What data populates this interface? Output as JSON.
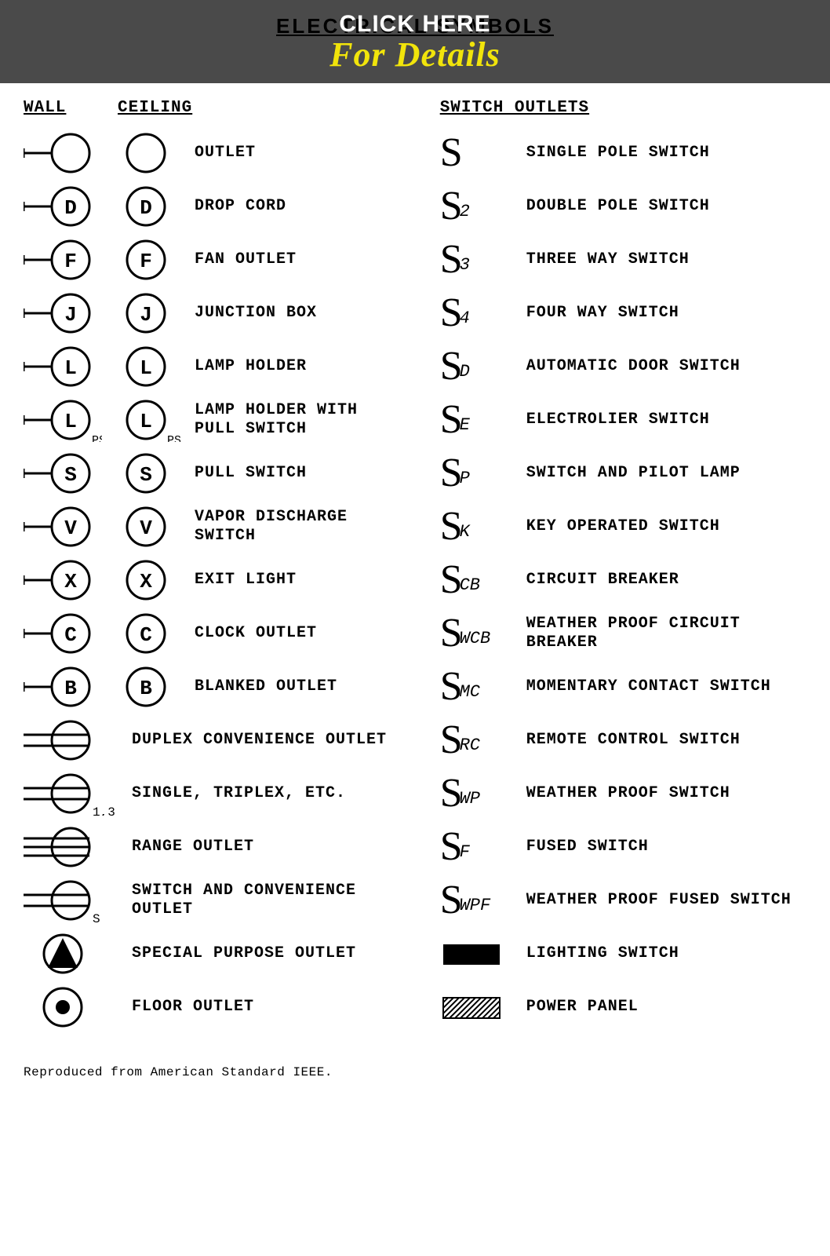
{
  "banner": {
    "hidden_text": "ELECTRICAL SYMBOLS",
    "click_here": "CLICK HERE",
    "for_details": "For Details",
    "bg_color": "#4a4a4a",
    "click_color": "#ffffff",
    "details_color": "#f1e40b"
  },
  "headers": {
    "wall": "WALL",
    "ceiling": "CEILING",
    "switch_outlets": "SWITCH OUTLETS"
  },
  "styling": {
    "stroke_color": "#000000",
    "stroke_width": 3,
    "circle_radius": 24,
    "font_family_mono": "Courier New",
    "font_family_serif": "Times New Roman",
    "label_fontsize": 20,
    "header_fontsize": 21,
    "s_fontsize": 52,
    "sub_fontsize": 22,
    "background": "#ffffff"
  },
  "outlet_rows": [
    {
      "letter": "",
      "sub": "",
      "label": "OUTLET"
    },
    {
      "letter": "D",
      "sub": "",
      "label": "DROP CORD"
    },
    {
      "letter": "F",
      "sub": "",
      "label": "FAN OUTLET"
    },
    {
      "letter": "J",
      "sub": "",
      "label": "JUNCTION BOX"
    },
    {
      "letter": "L",
      "sub": "",
      "label": "LAMP HOLDER"
    },
    {
      "letter": "L",
      "sub": "PS",
      "label": "LAMP HOLDER WITH PULL SWITCH"
    },
    {
      "letter": "S",
      "sub": "",
      "label": "PULL SWITCH"
    },
    {
      "letter": "V",
      "sub": "",
      "label": "VAPOR DISCHARGE SWITCH"
    },
    {
      "letter": "X",
      "sub": "",
      "label": "EXIT LIGHT"
    },
    {
      "letter": "C",
      "sub": "",
      "label": "CLOCK OUTLET"
    },
    {
      "letter": "B",
      "sub": "",
      "label": "BLANKED OUTLET"
    }
  ],
  "lower_rows": [
    {
      "type": "duplex",
      "sub": "",
      "label": "DUPLEX CONVENIENCE OUTLET"
    },
    {
      "type": "duplex",
      "sub": "1,3",
      "label": "SINGLE, TRIPLEX, ETC."
    },
    {
      "type": "range",
      "sub": "",
      "label": "RANGE OUTLET"
    },
    {
      "type": "duplex",
      "sub": "S",
      "label": "SWITCH AND CONVENIENCE OUTLET"
    },
    {
      "type": "special",
      "sub": "",
      "label": "SPECIAL PURPOSE OUTLET"
    },
    {
      "type": "floor",
      "sub": "",
      "label": "FLOOR OUTLET"
    }
  ],
  "switch_rows": [
    {
      "sub": "",
      "label": "SINGLE POLE SWITCH"
    },
    {
      "sub": "2",
      "label": "DOUBLE POLE SWITCH"
    },
    {
      "sub": "3",
      "label": "THREE WAY SWITCH"
    },
    {
      "sub": "4",
      "label": "FOUR WAY SWITCH"
    },
    {
      "sub": "D",
      "label": "AUTOMATIC DOOR SWITCH"
    },
    {
      "sub": "E",
      "label": "ELECTROLIER SWITCH"
    },
    {
      "sub": "P",
      "label": "SWITCH AND PILOT LAMP"
    },
    {
      "sub": "K",
      "label": "KEY OPERATED SWITCH"
    },
    {
      "sub": "CB",
      "label": "CIRCUIT BREAKER"
    },
    {
      "sub": "WCB",
      "label": "WEATHER PROOF CIRCUIT BREAKER"
    },
    {
      "sub": "MC",
      "label": "MOMENTARY CONTACT SWITCH"
    },
    {
      "sub": "RC",
      "label": "REMOTE CONTROL SWITCH"
    },
    {
      "sub": "WP",
      "label": "WEATHER PROOF SWITCH"
    },
    {
      "sub": "F",
      "label": "FUSED SWITCH"
    },
    {
      "sub": "WPF",
      "label": "WEATHER PROOF FUSED SWITCH"
    }
  ],
  "panel_rows": [
    {
      "type": "solid",
      "label": "LIGHTING SWITCH"
    },
    {
      "type": "hatch",
      "label": "POWER PANEL"
    }
  ],
  "footer": "Reproduced from American Standard IEEE."
}
